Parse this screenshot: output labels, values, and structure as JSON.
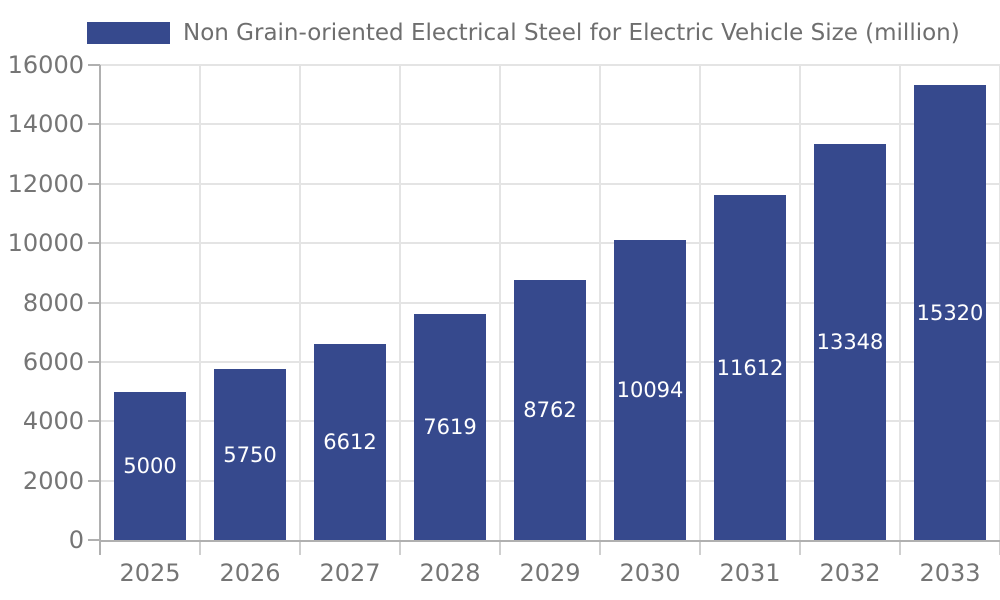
{
  "legend": {
    "label": "Non Grain-oriented Electrical Steel for Electric Vehicle Size (million)"
  },
  "chart_data": {
    "type": "bar",
    "title": "",
    "xlabel": "",
    "ylabel": "",
    "categories": [
      "2025",
      "2026",
      "2027",
      "2028",
      "2029",
      "2030",
      "2031",
      "2032",
      "2033"
    ],
    "values": [
      5000,
      5750,
      6612,
      7619,
      8762,
      10094,
      11612,
      13348,
      15320
    ],
    "series_name": "Non Grain-oriented Electrical Steel for Electric Vehicle Size (million)",
    "ylim": [
      0,
      16000
    ],
    "yticks": [
      0,
      2000,
      4000,
      6000,
      8000,
      10000,
      12000,
      14000,
      16000
    ],
    "grid": true,
    "legend_position": "top-left",
    "bar_labels_inside": true,
    "colors": {
      "bar": "#36498D",
      "bar_label": "#ffffff",
      "axis": "#b0b0b0",
      "grid": "#e4e4e4",
      "minor_tick": "#cfcfcf",
      "tick_label": "#757575",
      "legend_text": "#6e6e6e"
    }
  }
}
